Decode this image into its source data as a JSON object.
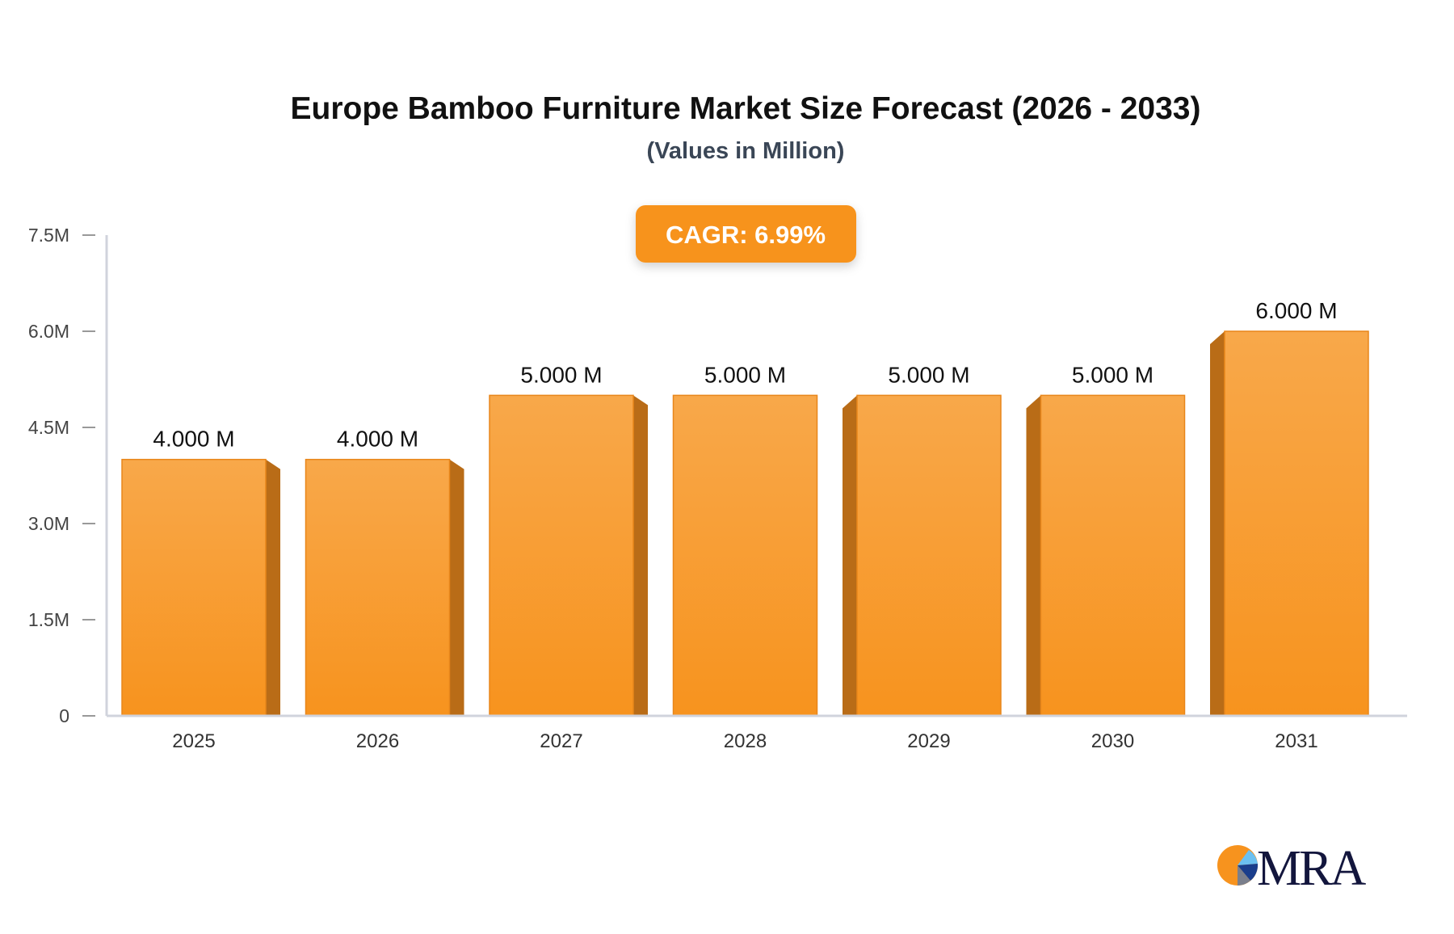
{
  "chart_data": {
    "type": "bar",
    "title": "Europe Bamboo Furniture Market Size Forecast (2026 - 2033)",
    "subtitle": "(Values in Million)",
    "annotation": "CAGR: 6.99%",
    "categories": [
      "2025",
      "2026",
      "2027",
      "2028",
      "2029",
      "2030",
      "2031"
    ],
    "values": [
      4,
      4,
      5,
      5,
      5,
      5,
      6
    ],
    "data_labels": [
      "4.000 M",
      "4.000 M",
      "5.000 M",
      "5.000 M",
      "5.000 M",
      "5.000 M",
      "6.000 M"
    ],
    "ylim": [
      0,
      7.5
    ],
    "yticks": [
      0,
      1.5,
      3.0,
      4.5,
      6.0,
      7.5
    ],
    "ytick_labels": [
      "0",
      "1.5M",
      "3.0M",
      "4.5M",
      "6.0M",
      "7.5M"
    ],
    "xlabel": "",
    "ylabel": "",
    "grid": false,
    "colors": {
      "bar_top": "#f8a84a",
      "bar_bottom": "#f7931e",
      "bar_side": "#b96c17",
      "cagr_badge": "#f7931e",
      "axis": "#d0d3dc"
    }
  },
  "logo": {
    "text": "MRA",
    "colors": [
      "#f7931e",
      "#6cc0f0",
      "#1a3e8c",
      "#7a7f8c",
      "#13163d"
    ]
  }
}
